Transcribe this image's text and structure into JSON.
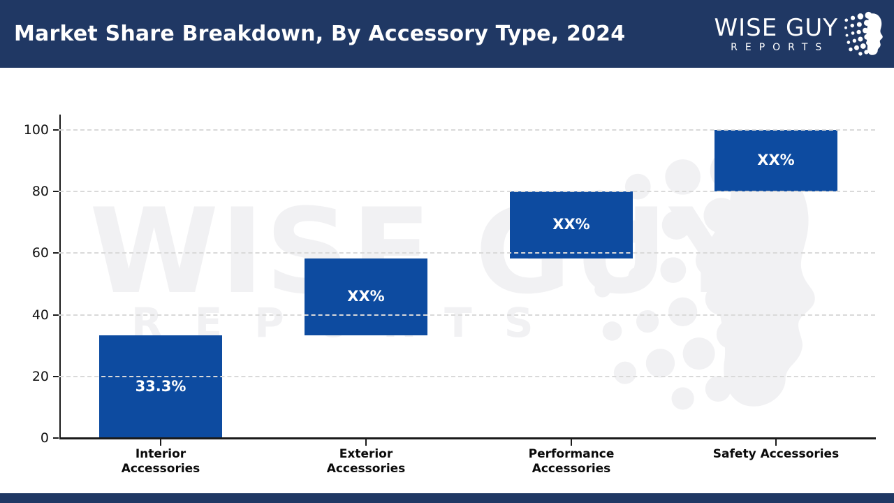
{
  "header": {
    "title": "Market Share Breakdown, By Accessory Type, 2024",
    "bg_color": "#203864",
    "logo": {
      "line1": "WISE GUY",
      "line2": "REPORTS"
    }
  },
  "watermark": {
    "line1": "WISE GUY",
    "line2": "REPORTS"
  },
  "chart_data": {
    "type": "bar",
    "subtype": "waterfall",
    "title": "Market Share Breakdown, By Accessory Type, 2024",
    "categories": [
      "Interior Accessories",
      "Exterior Accessories",
      "Performance Accessories",
      "Safety Accessories"
    ],
    "x_tick_label_lines": [
      [
        "Interior",
        "Accessories"
      ],
      [
        "Exterior",
        "Accessories"
      ],
      [
        "Performance",
        "Accessories"
      ],
      [
        "Safety Accessories"
      ]
    ],
    "segments": [
      {
        "category": "Interior Accessories",
        "start": 0,
        "end": 33.3,
        "label": "33.3%"
      },
      {
        "category": "Exterior Accessories",
        "start": 33.3,
        "end": 58.3,
        "label": "XX%"
      },
      {
        "category": "Performance Accessories",
        "start": 58.3,
        "end": 80,
        "label": "XX%"
      },
      {
        "category": "Safety Accessories",
        "start": 80,
        "end": 100,
        "label": "XX%"
      }
    ],
    "y_ticks": [
      0,
      20,
      40,
      60,
      80,
      100
    ],
    "ylim": [
      0,
      105
    ],
    "xlabel": "",
    "ylabel": "",
    "bar_color": "#0d4ba0",
    "grid": "dashed-horizontal",
    "grid_color": "#d9d9d9",
    "axis_color": "#1a1a1a",
    "bar_label_color": "#ffffff",
    "legend": "none"
  }
}
